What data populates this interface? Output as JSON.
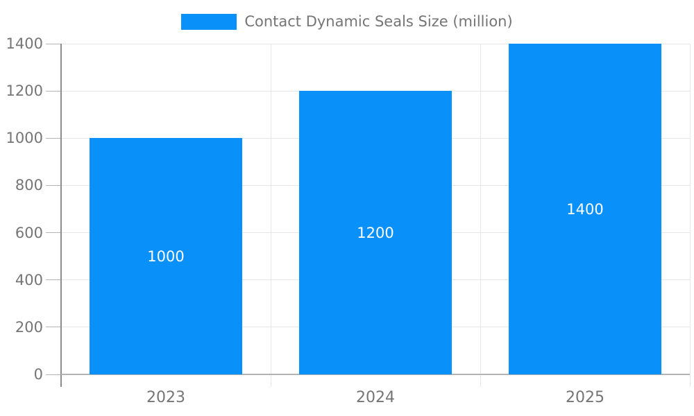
{
  "legend": {
    "label": "Contact Dynamic Seals Size (million)"
  },
  "chart_data": {
    "type": "bar",
    "title": "",
    "series_name": "Contact Dynamic Seals Size (million)",
    "categories": [
      "2023",
      "2024",
      "2025"
    ],
    "values": [
      1000,
      1200,
      1400
    ],
    "value_labels": [
      "1000",
      "1200",
      "1400"
    ],
    "xlabel": "",
    "ylabel": "",
    "ylim": [
      0,
      1400
    ],
    "ytick_step": 200,
    "ytick_labels": [
      "0",
      "200",
      "400",
      "600",
      "800",
      "1000",
      "1200",
      "1400"
    ],
    "grid": true,
    "legend_position": "top",
    "bar_color": "#0991f9",
    "value_label_color": "#ffffff",
    "axis_text_color": "#757575",
    "gridline_color": "#e6e6e6"
  }
}
